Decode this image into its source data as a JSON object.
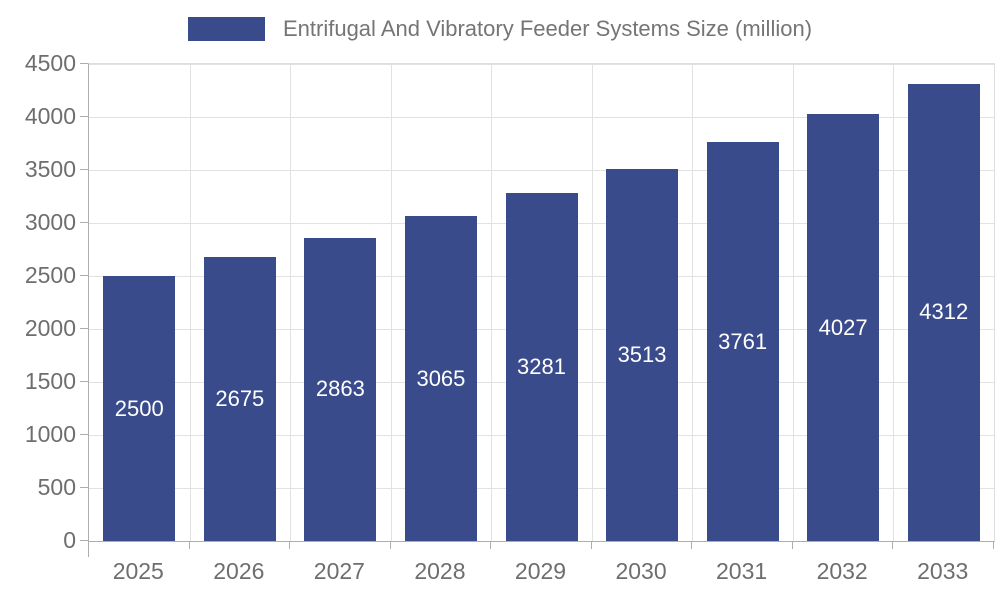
{
  "legend": {
    "label": "Entrifugal And Vibratory Feeder Systems Size (million)"
  },
  "chart_data": {
    "type": "bar",
    "title": "Entrifugal And Vibratory Feeder Systems Size (million)",
    "categories": [
      "2025",
      "2026",
      "2027",
      "2028",
      "2029",
      "2030",
      "2031",
      "2032",
      "2033"
    ],
    "values": [
      2500,
      2675,
      2863,
      3065,
      3281,
      3513,
      3761,
      4027,
      4312
    ],
    "bar_labels": [
      "2500",
      "2675",
      "2863",
      "3065",
      "3281",
      "3513",
      "3761",
      "4027",
      "4312"
    ],
    "xlabel": "",
    "ylabel": "",
    "ylim": [
      0,
      4500
    ],
    "yticks": [
      0,
      500,
      1000,
      1500,
      2000,
      2500,
      3000,
      3500,
      4000,
      4500
    ],
    "grid": true,
    "legend_position": "top-center",
    "colors": {
      "bar": "#3A4B8C",
      "bar_label": "#FFFFFF",
      "grid": "#E2E2E2",
      "plot_border": "#DEDEDE",
      "axis": "#ADADAD",
      "tick_text": "#6E6E6E",
      "title_text": "#757575",
      "background": "#FFFFFF"
    }
  }
}
